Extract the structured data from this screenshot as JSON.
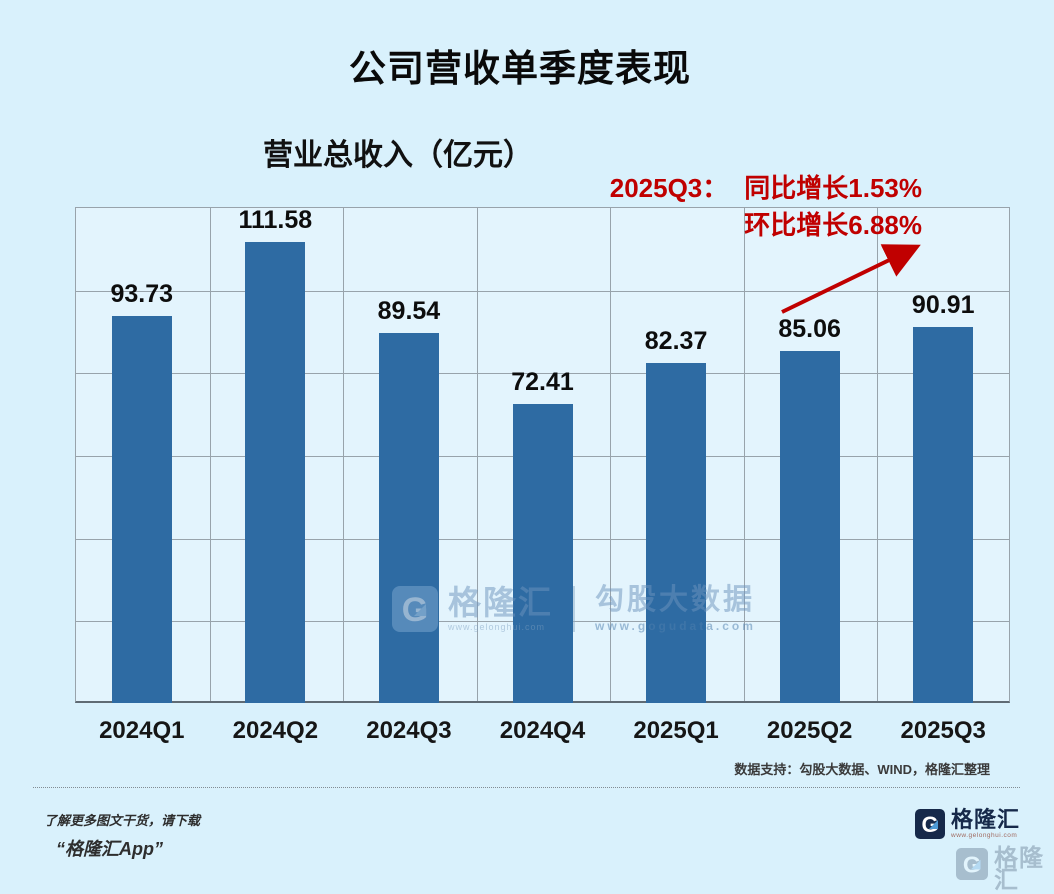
{
  "header": {
    "title": "公司营收单季度表现",
    "subtitle": "营业总收入（亿元）"
  },
  "chart_data": {
    "type": "bar",
    "title": "公司营收单季度表现",
    "ylabel_unit": "营业总收入（亿元）",
    "categories": [
      "2024Q1",
      "2024Q2",
      "2024Q3",
      "2024Q4",
      "2025Q1",
      "2025Q2",
      "2025Q3"
    ],
    "values": [
      93.73,
      111.58,
      89.54,
      72.41,
      82.37,
      85.06,
      90.91
    ],
    "value_labels": [
      "93.73",
      "111.58",
      "89.54",
      "72.41",
      "82.37",
      "85.06",
      "90.91"
    ],
    "ylim": [
      0,
      120
    ],
    "gridline_step": 20,
    "grid": true,
    "legend": "none",
    "bar_color": "#2e6ba3",
    "axis_labels_shown": "x-only"
  },
  "annotation": {
    "label": "2025Q3：",
    "line1": "同比增长1.53%",
    "line2": "环比增长6.88%",
    "color": "#c00000"
  },
  "watermark": {
    "logo_letter": "G",
    "brand": "格隆汇",
    "brand_url": "www.gelonghui.com",
    "partner": "勾股大数据",
    "partner_url": "www.gogudata.com"
  },
  "footer": {
    "source": "数据支持：勾股大数据、WIND，格隆汇整理",
    "promo_line1": "了解更多图文干货，请下载",
    "promo_line2": "“格隆汇App”",
    "logo_letter": "G",
    "logo_text": "格隆汇",
    "logo_url": "www.gelonghui.com"
  },
  "colors": {
    "page_bg": "#d9f1fc",
    "plot_bg": "#e3f4fd",
    "gridline": "#98a3ab",
    "bar": "#2e6ba3",
    "annotation_red": "#c00000",
    "logo_navy": "#16294a"
  }
}
